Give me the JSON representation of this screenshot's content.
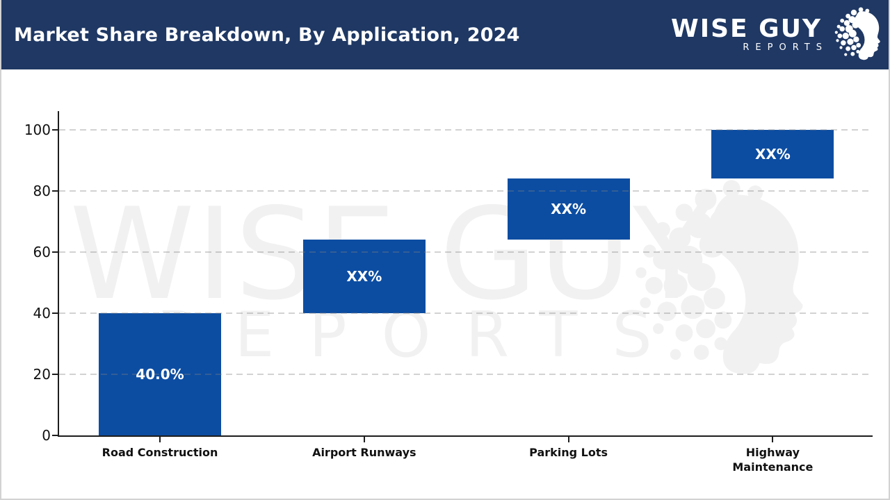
{
  "header": {
    "title": "Market Share Breakdown, By Application, 2024",
    "logo": {
      "line1": "WISE GUY",
      "line2": "REPORTS"
    }
  },
  "watermark": {
    "line1": "WISE GUY",
    "line2": "REPORTS"
  },
  "colors": {
    "header_bg": "#1F3864",
    "bar_blue": "#0C4DA2",
    "bar_label_text": "#ffffff",
    "axis": "#1d1d1d",
    "gridline": "#d5d5d5",
    "watermark": "#f1f1f1",
    "page_border": "#d2d2d2"
  },
  "chart_data": {
    "type": "bar",
    "subtype": "waterfall",
    "title": "Market Share Breakdown, By Application, 2024",
    "categories": [
      "Road Construction",
      "Airport Runways",
      "Parking Lots",
      "Highway Maintenance"
    ],
    "category_label_lines": [
      [
        "Road Construction"
      ],
      [
        "Airport Runways"
      ],
      [
        "Parking Lots"
      ],
      [
        "Highway",
        "Maintenance"
      ]
    ],
    "bars": [
      {
        "category": "Road Construction",
        "start": 0,
        "end": 40,
        "label": "40.0%"
      },
      {
        "category": "Airport Runways",
        "start": 40,
        "end": 64,
        "label": "XX%"
      },
      {
        "category": "Parking Lots",
        "start": 64,
        "end": 84,
        "label": "XX%"
      },
      {
        "category": "Highway Maintenance",
        "start": 84,
        "end": 100,
        "label": "XX%"
      }
    ],
    "xlabel": "",
    "ylabel": "",
    "ylim": [
      0,
      100
    ],
    "yticks": [
      0,
      20,
      40,
      60,
      80,
      100
    ],
    "grid": {
      "horizontal": true,
      "style": "dashed"
    },
    "legend": "none"
  }
}
